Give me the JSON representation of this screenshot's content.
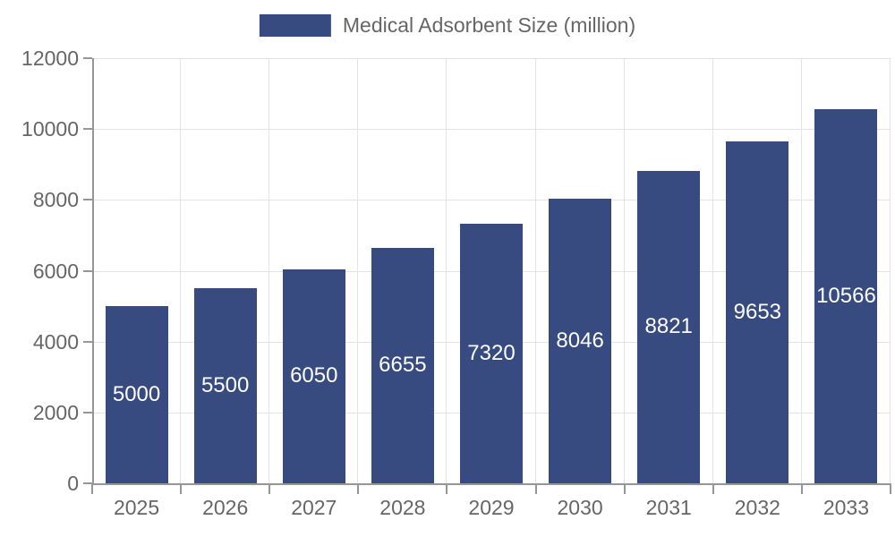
{
  "legend": {
    "label": "Medical Adsorbent Size (million)"
  },
  "chart_data": {
    "type": "bar",
    "title": "Medical Adsorbent Size (million)",
    "categories": [
      "2025",
      "2026",
      "2027",
      "2028",
      "2029",
      "2030",
      "2031",
      "2032",
      "2033"
    ],
    "series": [
      {
        "name": "Medical Adsorbent Size (million)",
        "values": [
          5000,
          5500,
          6050,
          6655,
          7320,
          8046,
          8821,
          9653,
          10566
        ]
      }
    ],
    "xlabel": "",
    "ylabel": "",
    "ylim": [
      0,
      12000
    ],
    "yticks": [
      0,
      2000,
      4000,
      6000,
      8000,
      10000,
      12000
    ],
    "grid": true,
    "legend_position": "top-center",
    "value_labels": "inside-center",
    "colors": {
      "bar": "#374B80",
      "grid": "#e2e2e8",
      "axis": "#969696",
      "tick_text": "#666666",
      "value_text": "#ffffff",
      "background": "#ffffff"
    }
  }
}
